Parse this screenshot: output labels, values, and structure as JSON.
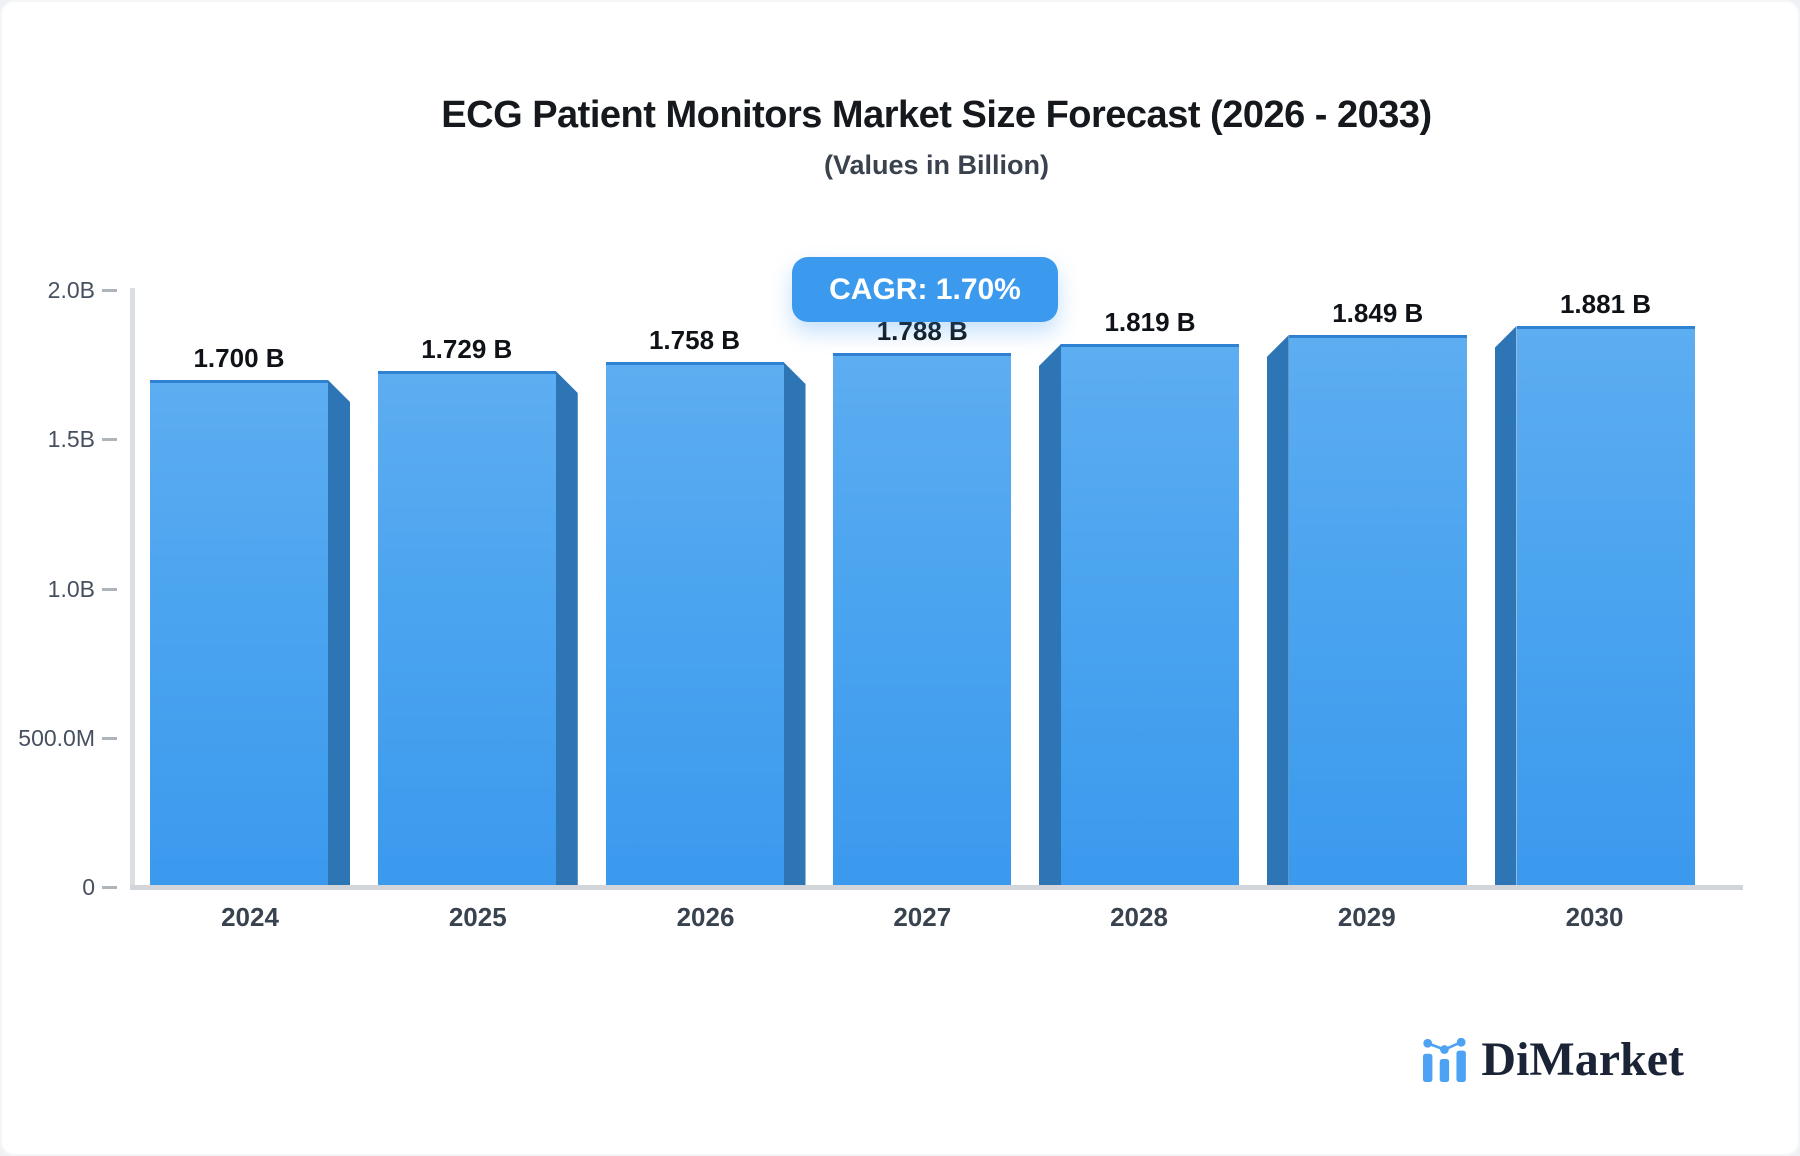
{
  "badge": {
    "label": "CAGR: 1.70%"
  },
  "branding": {
    "name": "DiMarket",
    "icon": "bar-chart-logo-icon"
  },
  "chart_data": {
    "type": "bar",
    "title": "ECG Patient Monitors Market Size Forecast (2026 - 2033)",
    "subtitle": "(Values in Billion)",
    "categories": [
      "2024",
      "2025",
      "2026",
      "2027",
      "2028",
      "2029",
      "2030"
    ],
    "values": [
      1.7,
      1.729,
      1.758,
      1.788,
      1.819,
      1.849,
      1.881
    ],
    "bar_labels": [
      "1.700 B",
      "1.729 B",
      "1.758 B",
      "1.788 B",
      "1.819 B",
      "1.849 B",
      "1.881 B"
    ],
    "xlabel": "",
    "ylabel": "",
    "ylim": [
      0,
      2.0
    ],
    "y_ticks": [
      {
        "label": "0",
        "value": 0
      },
      {
        "label": "500.0M",
        "value": 0.5
      },
      {
        "label": "1.0B",
        "value": 1.0
      },
      {
        "label": "1.5B",
        "value": 1.5
      },
      {
        "label": "2.0B",
        "value": 2.0
      }
    ],
    "grid": false,
    "legend": "none",
    "colors": {
      "bar_face_top": "#5dadf1",
      "bar_face_bottom": "#3b99ee",
      "bar_side": "#2e75b6",
      "bar_top_edge": "#2f82d2",
      "badge_bg": "#3b99ee",
      "axis_line": "#d2d6db",
      "tick_text": "#46505f",
      "label_text": "#0f1317",
      "logo_blue": "#4da2f4",
      "logo_navy": "#1b2436"
    }
  }
}
